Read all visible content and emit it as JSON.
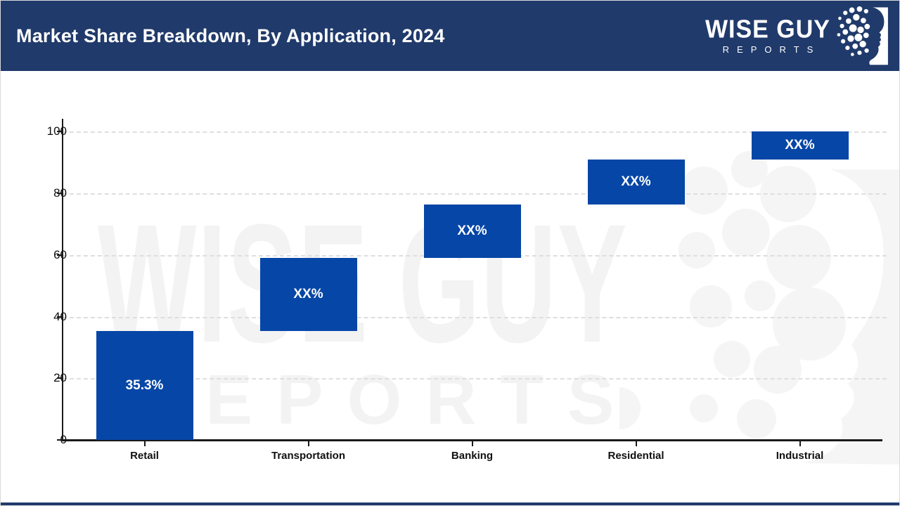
{
  "header": {
    "title": "Market Share Breakdown, By Application, 2024",
    "logo": {
      "line1": "WISE GUY",
      "line2": "REPORTS"
    }
  },
  "watermark": {
    "line1": "WISE GUY",
    "line2": "REPORTS"
  },
  "colors": {
    "header_bg": "#203A6B",
    "bar": "#0646A6",
    "bar_label": "#FFFFFF",
    "grid": "#DEDEDE",
    "axis": "#1A1A1A",
    "watermark": "#F3F3F3",
    "footer_bg": "#203A6B"
  },
  "chart_data": {
    "type": "bar",
    "subtype": "waterfall",
    "title": "Market Share Breakdown, By Application, 2024",
    "categories": [
      "Retail",
      "Transportation",
      "Banking",
      "Residential",
      "Industrial"
    ],
    "segments": [
      {
        "category": "Retail",
        "start": 0,
        "end": 35.3,
        "label": "35.3%"
      },
      {
        "category": "Transportation",
        "start": 35.3,
        "end": 59,
        "label": "XX%"
      },
      {
        "category": "Banking",
        "start": 59,
        "end": 76.4,
        "label": "XX%"
      },
      {
        "category": "Residential",
        "start": 76.4,
        "end": 91,
        "label": "XX%"
      },
      {
        "category": "Industrial",
        "start": 91,
        "end": 100,
        "label": "XX%"
      }
    ],
    "increments": [
      35.3,
      23.7,
      17.4,
      14.6,
      9.0
    ],
    "xlabel": "",
    "ylabel": "",
    "ylim": [
      0,
      104
    ],
    "yticks": [
      0,
      20,
      40,
      60,
      80,
      100
    ],
    "grid": true,
    "legend": null
  }
}
